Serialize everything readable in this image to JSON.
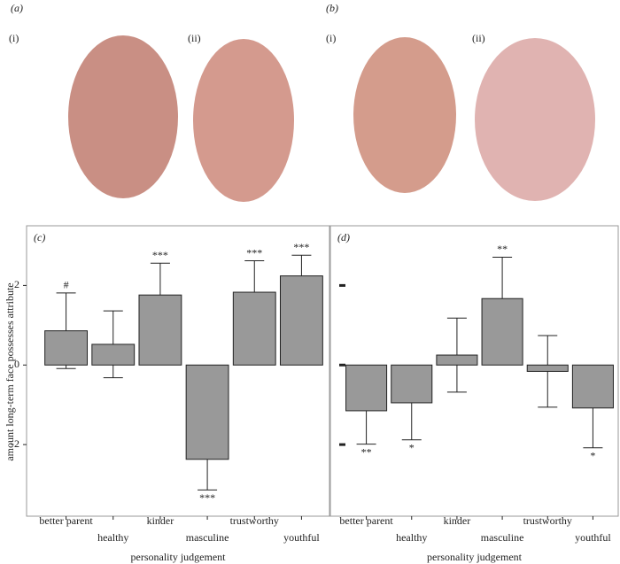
{
  "image_panels": [
    {
      "label": "(a)",
      "faces": [
        "(i)",
        "(ii)"
      ]
    },
    {
      "label": "(b)",
      "faces": [
        "(i)",
        "(ii)"
      ]
    }
  ],
  "chart_data": [
    {
      "type": "bar",
      "panel_label": "(c)",
      "xlabel": "personality judgement",
      "ylabel": "amount long-term face possesses attribute",
      "categories": [
        "better parent",
        "healthy",
        "kinder",
        "masculine",
        "trustworthy",
        "youthful"
      ],
      "values": [
        0.86,
        0.52,
        1.76,
        -2.37,
        1.83,
        2.24
      ],
      "errors": [
        0.95,
        0.84,
        0.8,
        0.77,
        0.79,
        0.52
      ],
      "annotations": [
        "#",
        null,
        "***",
        "***",
        "***",
        "***"
      ],
      "color": "#999999",
      "ylim": [
        -3.8,
        3.5
      ],
      "yticks": [
        -2,
        0,
        2
      ],
      "ytick_labels": true
    },
    {
      "type": "bar",
      "panel_label": "(d)",
      "xlabel": "personality judgement",
      "categories": [
        "better parent",
        "healthy",
        "kinder",
        "masculine",
        "trustworthy",
        "youthful"
      ],
      "values": [
        -1.15,
        -0.95,
        0.25,
        1.67,
        -0.16,
        -1.08
      ],
      "errors": [
        0.84,
        0.93,
        0.93,
        1.04,
        0.9,
        1.0
      ],
      "annotations": [
        "**",
        "*",
        null,
        "**",
        null,
        "*"
      ],
      "color": "#999999",
      "ylim": [
        -3.8,
        3.5
      ],
      "yticks": [
        -2,
        0,
        2
      ],
      "ytick_labels": false
    }
  ]
}
